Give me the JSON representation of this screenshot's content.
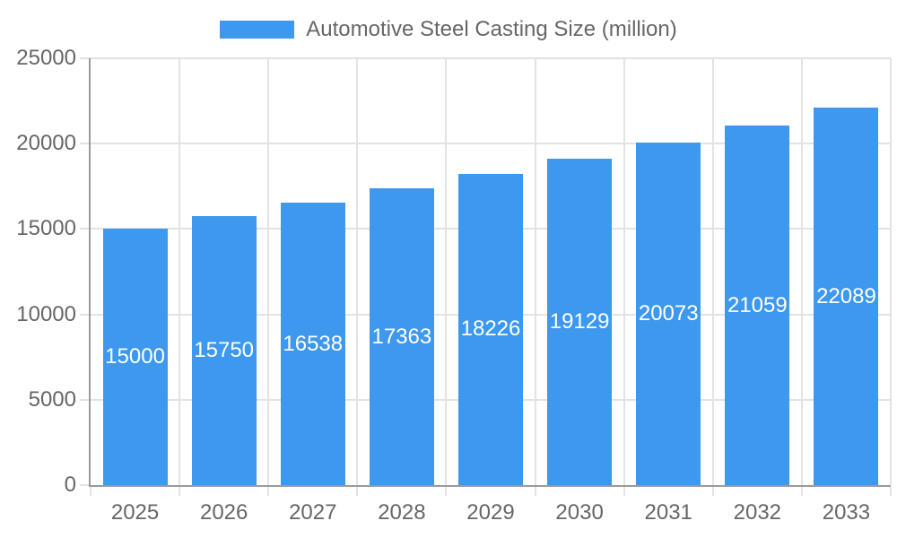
{
  "chart_data": {
    "type": "bar",
    "title": "Automotive Steel Casting Size (million)",
    "series": [
      {
        "name": "Automotive Steel Casting Size (million)",
        "values": [
          15000,
          15750,
          16538,
          17363,
          18226,
          19129,
          20073,
          21059,
          22089
        ]
      }
    ],
    "categories": [
      "2025",
      "2026",
      "2027",
      "2028",
      "2029",
      "2030",
      "2031",
      "2032",
      "2033"
    ],
    "value_labels": [
      "15000",
      "15750",
      "16538",
      "17363",
      "18226",
      "19129",
      "20073",
      "21059",
      "22089"
    ],
    "xlabel": "",
    "ylabel": "",
    "ylim": [
      0,
      25000
    ],
    "yticks": [
      0,
      5000,
      10000,
      15000,
      20000,
      25000
    ],
    "grid": true,
    "legend_position": "top",
    "bar_color": "#3D98EE",
    "value_label_color": "#FFFFFF",
    "gridline_color": "#E3E3E3",
    "axis_color": "#9A9A9A",
    "tick_label_color": "#666666"
  }
}
